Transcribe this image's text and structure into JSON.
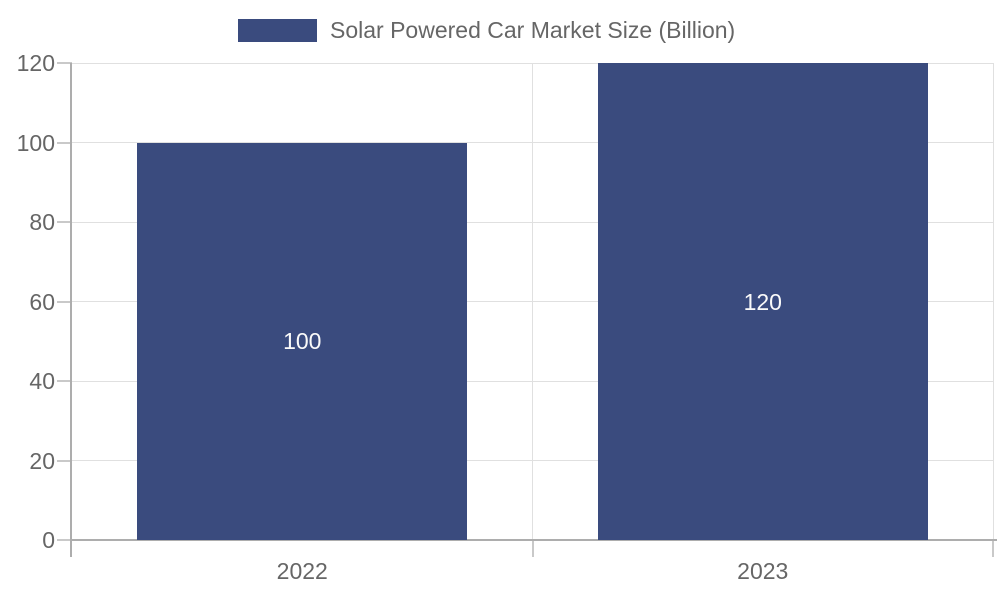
{
  "chart_data": {
    "type": "bar",
    "title": "",
    "series_name": "Solar Powered Car Market Size (Billion)",
    "legend_position": "top-center",
    "categories": [
      "2022",
      "2023"
    ],
    "values": [
      100,
      120
    ],
    "value_labels": [
      "100",
      "120"
    ],
    "xlabel": "",
    "ylabel": "",
    "ylim": [
      0,
      120
    ],
    "yticks": [
      0,
      20,
      40,
      60,
      80,
      100,
      120
    ],
    "grid": true,
    "colors": {
      "bar": "#3A4B7E",
      "value_label_text": "#FAFAFA",
      "tick_label_text": "#666666",
      "legend_text": "#666666",
      "gridline": "#E0E0E0",
      "axis_line": "#ADADAD",
      "tick_mark": "#C9C9C9"
    }
  }
}
